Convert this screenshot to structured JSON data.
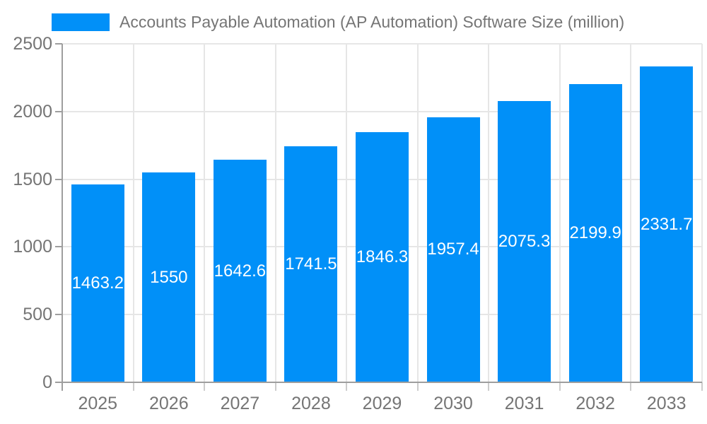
{
  "chart_data": {
    "type": "bar",
    "series_name": "Accounts Payable Automation (AP Automation) Software Size (million)",
    "categories": [
      "2025",
      "2026",
      "2027",
      "2028",
      "2029",
      "2030",
      "2031",
      "2032",
      "2033"
    ],
    "values": [
      1463.2,
      1550,
      1642.6,
      1741.5,
      1846.3,
      1957.4,
      2075.3,
      2199.9,
      2331.7
    ],
    "title": "",
    "xlabel": "",
    "ylabel": "",
    "ylim": [
      0,
      2500
    ],
    "yticks": [
      0,
      500,
      1000,
      1500,
      2000,
      2500
    ],
    "grid": true,
    "legend_position": "top-left",
    "data_labels_position": "inside-center",
    "colors": {
      "bar": "#0190F8",
      "text": "#757575",
      "grid": "#e6e6e6",
      "axis": "#9e9e9e",
      "tick": "#cccccc",
      "data_label": "#ffffff",
      "background": "#ffffff"
    }
  }
}
